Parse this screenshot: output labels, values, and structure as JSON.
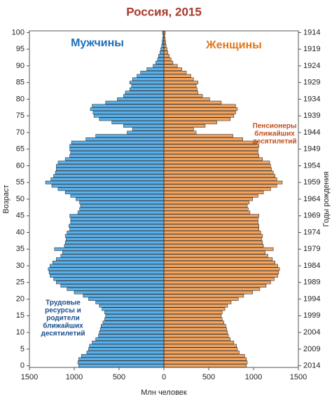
{
  "chart_data": {
    "type": "pyramid",
    "title": "Россия, 2015",
    "x_label": "Млн человек",
    "y_label": "Возраст",
    "y2_label": "Годы рождения",
    "y": [
      0,
      1,
      2,
      3,
      4,
      5,
      6,
      7,
      8,
      9,
      10,
      11,
      12,
      13,
      14,
      15,
      16,
      17,
      18,
      19,
      20,
      21,
      22,
      23,
      24,
      25,
      26,
      27,
      28,
      29,
      30,
      31,
      32,
      33,
      34,
      35,
      36,
      37,
      38,
      39,
      40,
      41,
      42,
      43,
      44,
      45,
      46,
      47,
      48,
      49,
      50,
      51,
      52,
      53,
      54,
      55,
      56,
      57,
      58,
      59,
      60,
      61,
      62,
      63,
      64,
      65,
      66,
      67,
      68,
      69,
      70,
      71,
      72,
      73,
      74,
      75,
      76,
      77,
      78,
      79,
      80,
      81,
      82,
      83,
      84,
      85,
      86,
      87,
      88,
      89,
      90,
      91,
      92,
      93,
      94,
      95,
      96,
      97,
      98,
      99,
      100
    ],
    "series": [
      {
        "name": "Мужчины",
        "color": "#5ab0ea",
        "values": [
          950,
          960,
          950,
          920,
          860,
          840,
          830,
          800,
          760,
          730,
          720,
          710,
          700,
          680,
          660,
          650,
          660,
          690,
          720,
          760,
          840,
          900,
          1000,
          1080,
          1150,
          1200,
          1230,
          1270,
          1280,
          1290,
          1270,
          1240,
          1200,
          1150,
          1130,
          1220,
          1110,
          1100,
          1090,
          1100,
          1080,
          1050,
          1060,
          1040,
          1040,
          1050,
          960,
          940,
          930,
          940,
          980,
          1040,
          1100,
          1180,
          1250,
          1320,
          1260,
          1230,
          1210,
          1200,
          1200,
          1180,
          1100,
          1050,
          1040,
          1050,
          1050,
          1030,
          870,
          760,
          410,
          350,
          450,
          580,
          720,
          780,
          790,
          820,
          800,
          650,
          520,
          450,
          430,
          380,
          360,
          380,
          350,
          300,
          260,
          190,
          120,
          90,
          70,
          60,
          45,
          35,
          25,
          20,
          15,
          10,
          15
        ]
      },
      {
        "name": "Женщины",
        "color": "#f2a35e",
        "values": [
          920,
          930,
          920,
          900,
          840,
          820,
          810,
          780,
          740,
          720,
          710,
          700,
          690,
          670,
          650,
          640,
          650,
          680,
          710,
          750,
          830,
          890,
          990,
          1070,
          1140,
          1190,
          1230,
          1270,
          1280,
          1290,
          1270,
          1240,
          1210,
          1160,
          1130,
          1220,
          1110,
          1100,
          1090,
          1100,
          1080,
          1060,
          1060,
          1050,
          1050,
          1060,
          960,
          940,
          930,
          950,
          990,
          1050,
          1110,
          1190,
          1260,
          1320,
          1260,
          1240,
          1220,
          1200,
          1190,
          1180,
          1100,
          1060,
          1050,
          1050,
          1060,
          1040,
          880,
          770,
          360,
          330,
          460,
          590,
          740,
          780,
          800,
          820,
          800,
          640,
          510,
          430,
          380,
          370,
          360,
          380,
          330,
          300,
          250,
          200,
          150,
          100,
          80,
          60,
          45,
          35,
          25,
          20,
          15,
          10,
          15
        ]
      }
    ],
    "xlim": [
      -1500,
      1500
    ],
    "xticks": [
      {
        "value": -1500,
        "label": "1500"
      },
      {
        "value": -1000,
        "label": "1000"
      },
      {
        "value": -500,
        "label": "500"
      },
      0,
      500,
      1000,
      1500
    ],
    "ylim": [
      -0.5,
      100.5
    ],
    "yticks": [
      0,
      5,
      10,
      15,
      20,
      25,
      30,
      35,
      40,
      45,
      50,
      55,
      60,
      65,
      70,
      75,
      80,
      85,
      90,
      95,
      100
    ],
    "y2lim": [
      2014.5,
      1913.5
    ],
    "y2ticks": [
      2014,
      2009,
      2004,
      1999,
      1994,
      1989,
      1984,
      1979,
      1974,
      1969,
      1964,
      1959,
      1954,
      1949,
      1944,
      1939,
      1934,
      1929,
      1924,
      1919,
      1914
    ],
    "annotations": [
      {
        "lines": [
          "Пенсионеры",
          "ближайших",
          "десятилетий"
        ],
        "color": "#c0501a"
      },
      {
        "lines": [
          "Трудовые",
          "ресурсы и",
          "родители",
          "ближайших",
          "десятилетий"
        ],
        "color": "#1a4e8a"
      }
    ]
  }
}
